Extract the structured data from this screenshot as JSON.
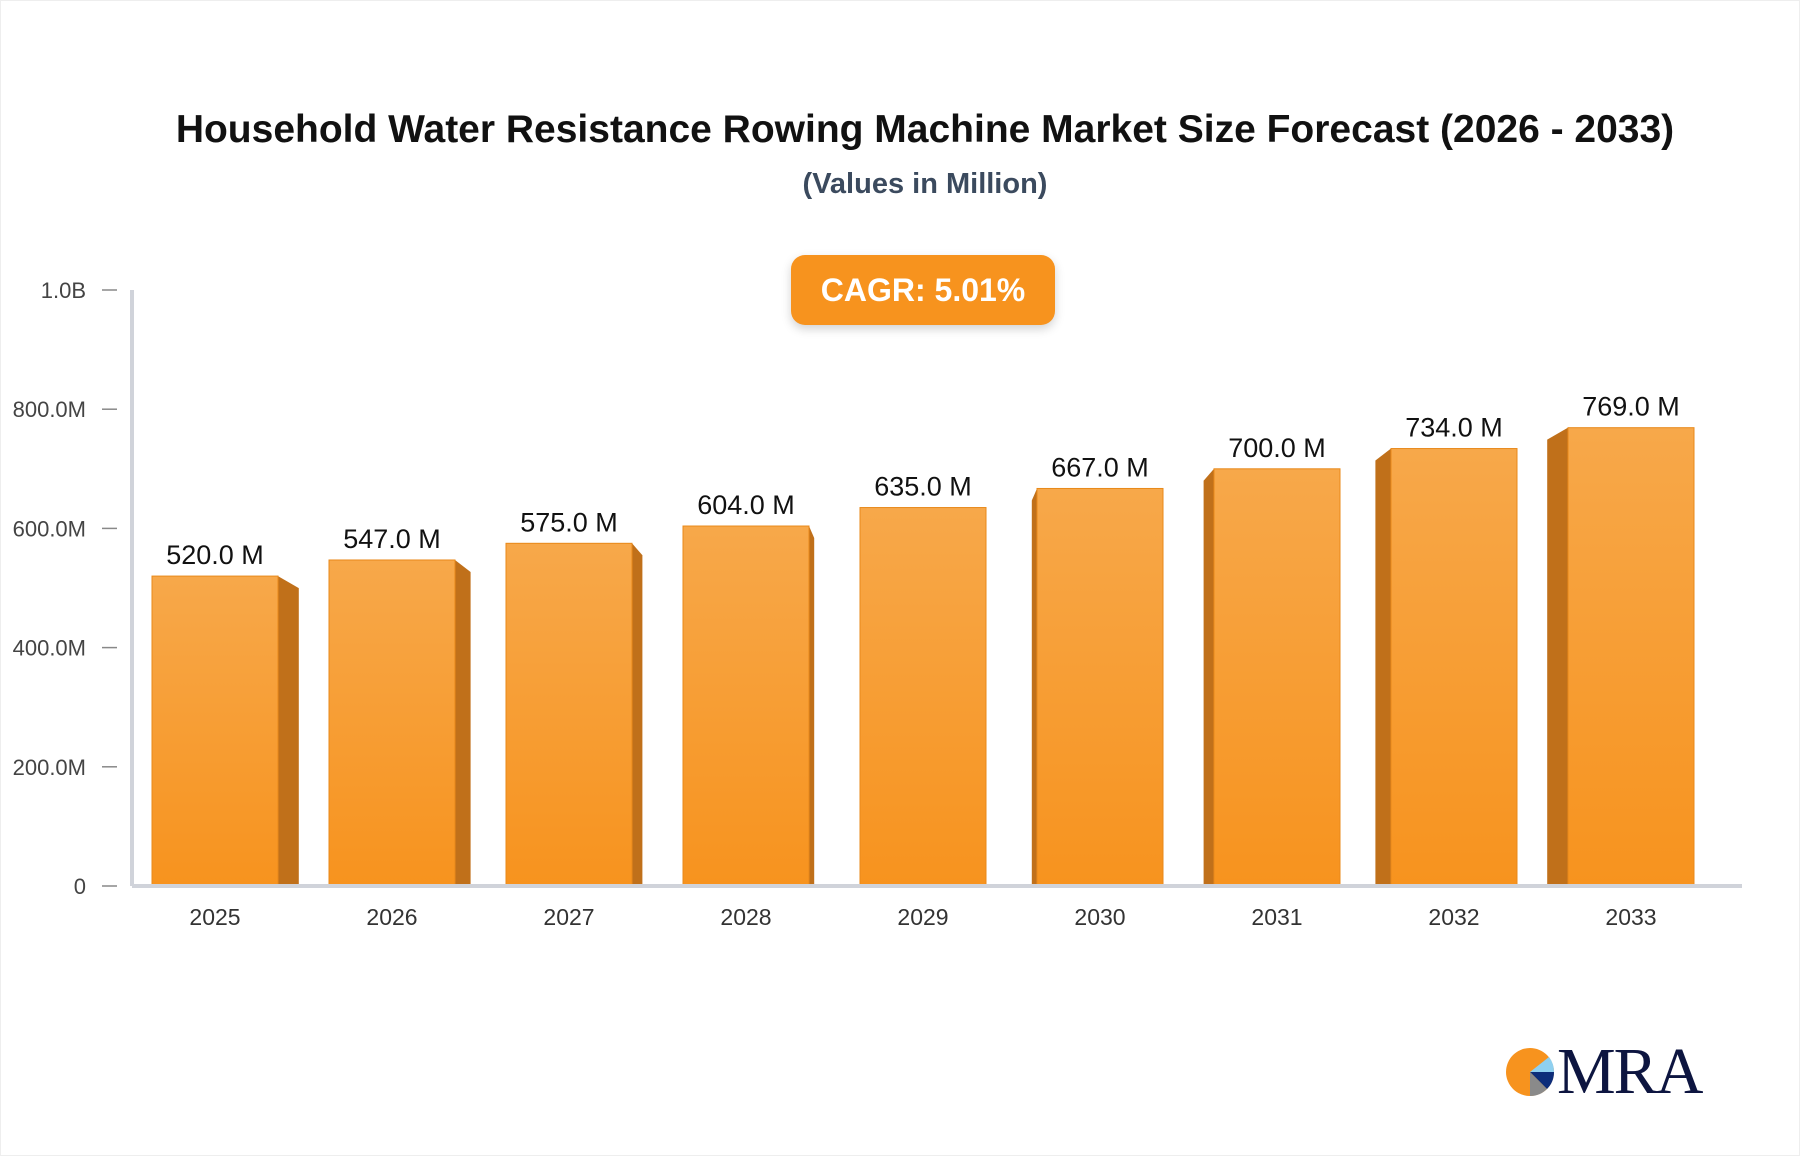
{
  "chart_data": {
    "type": "bar",
    "title": "Household Water Resistance Rowing Machine Market Size Forecast (2026 - 2033)",
    "subtitle": "(Values in Million)",
    "annotation": "CAGR: 5.01%",
    "categories": [
      "2025",
      "2026",
      "2027",
      "2028",
      "2029",
      "2030",
      "2031",
      "2032",
      "2033"
    ],
    "values": [
      520.0,
      547.0,
      575.0,
      604.0,
      635.0,
      667.0,
      700.0,
      734.0,
      769.0
    ],
    "data_labels": [
      "520.0 M",
      "547.0 M",
      "575.0 M",
      "604.0 M",
      "635.0 M",
      "667.0 M",
      "700.0 M",
      "734.0 M",
      "769.0 M"
    ],
    "yticks": [
      0,
      200,
      400,
      600,
      800,
      1000
    ],
    "ytick_labels": [
      "0",
      "200.0M",
      "400.0M",
      "600.0M",
      "800.0M",
      "1.0B"
    ],
    "ylim": [
      0,
      1000
    ],
    "xlabel": "",
    "ylabel": "",
    "grid": false,
    "colors": {
      "bar_top": "#f7a84a",
      "bar_bottom": "#f7931e",
      "bar_side": "#c0701a",
      "axis": "#d0d3da"
    }
  },
  "logo": {
    "text": "MRA"
  }
}
